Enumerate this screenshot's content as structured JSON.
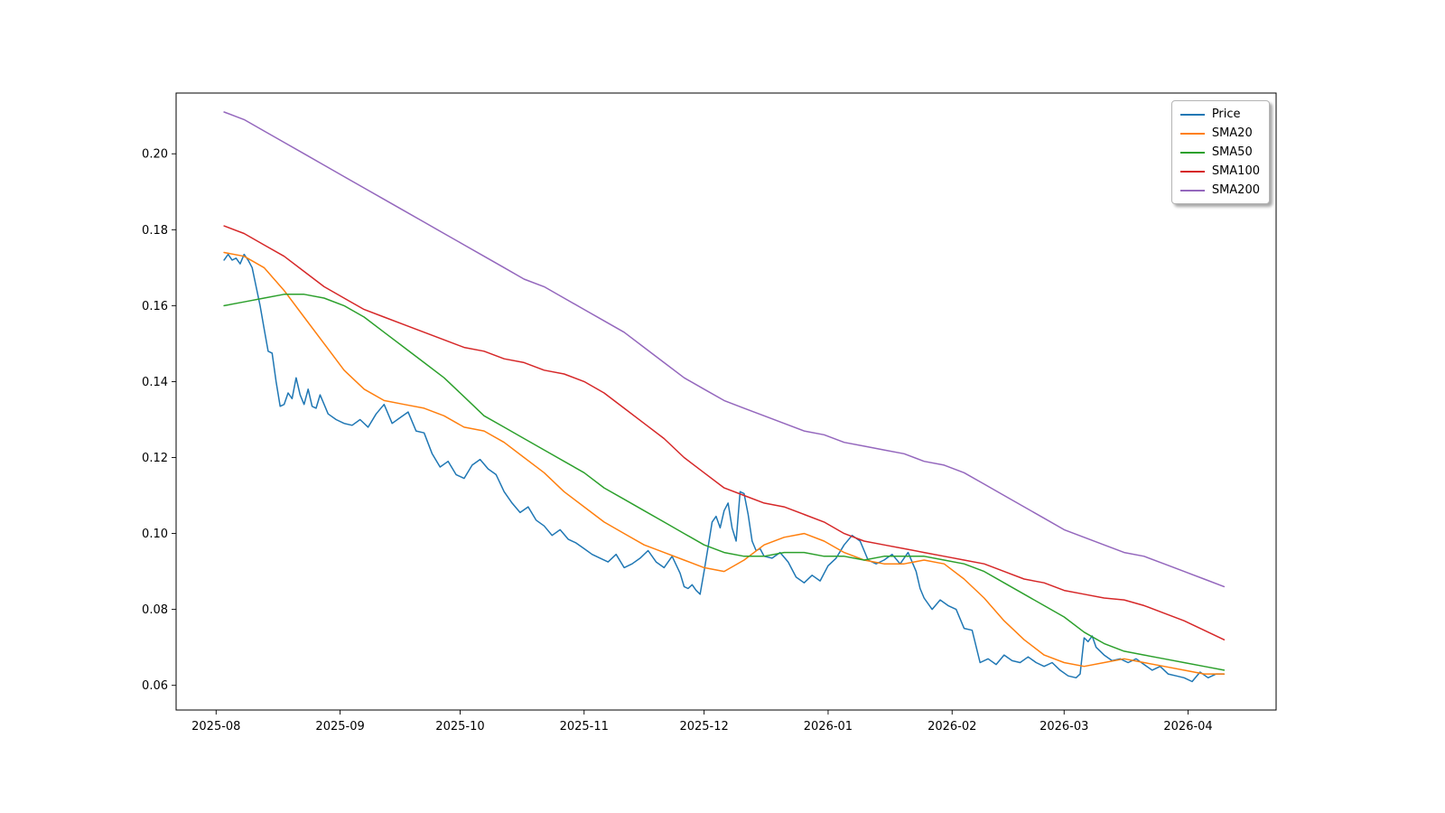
{
  "chart_data": {
    "type": "line",
    "title": "",
    "xlabel": "",
    "ylabel": "",
    "grid": false,
    "legend_position": "upper right",
    "xlim": [
      "2025-07-22",
      "2026-04-23"
    ],
    "ylim": [
      0.0535,
      0.216
    ],
    "yticks": [
      0.06,
      0.08,
      0.1,
      0.12,
      0.14,
      0.16,
      0.18,
      0.2
    ],
    "xticks": [
      {
        "date": "2025-08-01",
        "label": "2025-08"
      },
      {
        "date": "2025-09-01",
        "label": "2025-09"
      },
      {
        "date": "2025-10-01",
        "label": "2025-10"
      },
      {
        "date": "2025-11-01",
        "label": "2025-11"
      },
      {
        "date": "2025-12-01",
        "label": "2025-12"
      },
      {
        "date": "2026-01-01",
        "label": "2026-01"
      },
      {
        "date": "2026-02-01",
        "label": "2026-02"
      },
      {
        "date": "2026-03-01",
        "label": "2026-03"
      },
      {
        "date": "2026-04-01",
        "label": "2026-04"
      }
    ],
    "series": [
      {
        "name": "Price",
        "color": "#1f77b4",
        "dates": [
          "2025-08-03",
          "2025-08-04",
          "2025-08-05",
          "2025-08-06",
          "2025-08-07",
          "2025-08-08",
          "2025-08-09",
          "2025-08-10",
          "2025-08-11",
          "2025-08-12",
          "2025-08-13",
          "2025-08-14",
          "2025-08-15",
          "2025-08-16",
          "2025-08-17",
          "2025-08-18",
          "2025-08-19",
          "2025-08-20",
          "2025-08-21",
          "2025-08-22",
          "2025-08-23",
          "2025-08-24",
          "2025-08-25",
          "2025-08-26",
          "2025-08-27",
          "2025-08-28",
          "2025-08-29",
          "2025-08-31",
          "2025-09-02",
          "2025-09-04",
          "2025-09-06",
          "2025-09-08",
          "2025-09-10",
          "2025-09-12",
          "2025-09-14",
          "2025-09-16",
          "2025-09-18",
          "2025-09-20",
          "2025-09-22",
          "2025-09-24",
          "2025-09-26",
          "2025-09-28",
          "2025-09-30",
          "2025-10-02",
          "2025-10-04",
          "2025-10-06",
          "2025-10-08",
          "2025-10-10",
          "2025-10-12",
          "2025-10-14",
          "2025-10-16",
          "2025-10-18",
          "2025-10-20",
          "2025-10-22",
          "2025-10-24",
          "2025-10-26",
          "2025-10-28",
          "2025-10-30",
          "2025-11-01",
          "2025-11-03",
          "2025-11-05",
          "2025-11-07",
          "2025-11-09",
          "2025-11-11",
          "2025-11-13",
          "2025-11-15",
          "2025-11-17",
          "2025-11-19",
          "2025-11-21",
          "2025-11-23",
          "2025-11-25",
          "2025-11-26",
          "2025-11-27",
          "2025-11-28",
          "2025-11-29",
          "2025-11-30",
          "2025-12-01",
          "2025-12-02",
          "2025-12-03",
          "2025-12-04",
          "2025-12-05",
          "2025-12-06",
          "2025-12-07",
          "2025-12-08",
          "2025-12-09",
          "2025-12-10",
          "2025-12-11",
          "2025-12-12",
          "2025-12-13",
          "2025-12-14",
          "2025-12-15",
          "2025-12-16",
          "2025-12-18",
          "2025-12-20",
          "2025-12-22",
          "2025-12-24",
          "2025-12-26",
          "2025-12-28",
          "2025-12-30",
          "2026-01-01",
          "2026-01-03",
          "2026-01-05",
          "2026-01-07",
          "2026-01-09",
          "2026-01-11",
          "2026-01-13",
          "2026-01-15",
          "2026-01-17",
          "2026-01-19",
          "2026-01-21",
          "2026-01-23",
          "2026-01-24",
          "2026-01-25",
          "2026-01-27",
          "2026-01-29",
          "2026-01-31",
          "2026-02-02",
          "2026-02-04",
          "2026-02-06",
          "2026-02-08",
          "2026-02-10",
          "2026-02-12",
          "2026-02-14",
          "2026-02-16",
          "2026-02-18",
          "2026-02-20",
          "2026-02-22",
          "2026-02-24",
          "2026-02-26",
          "2026-02-28",
          "2026-03-02",
          "2026-03-04",
          "2026-03-05",
          "2026-03-06",
          "2026-03-07",
          "2026-03-08",
          "2026-03-09",
          "2026-03-11",
          "2026-03-13",
          "2026-03-15",
          "2026-03-17",
          "2026-03-19",
          "2026-03-21",
          "2026-03-23",
          "2026-03-25",
          "2026-03-27",
          "2026-03-29",
          "2026-03-31",
          "2026-04-02",
          "2026-04-04",
          "2026-04-06",
          "2026-04-08",
          "2026-04-10"
        ],
        "values": [
          0.172,
          0.1735,
          0.172,
          0.1725,
          0.171,
          0.1735,
          0.172,
          0.17,
          0.165,
          0.16,
          0.154,
          0.148,
          0.1475,
          0.14,
          0.1335,
          0.134,
          0.137,
          0.1355,
          0.141,
          0.1365,
          0.134,
          0.138,
          0.1335,
          0.133,
          0.1365,
          0.134,
          0.1315,
          0.13,
          0.129,
          0.1285,
          0.13,
          0.128,
          0.1315,
          0.134,
          0.129,
          0.1305,
          0.132,
          0.127,
          0.1265,
          0.121,
          0.1175,
          0.119,
          0.1155,
          0.1145,
          0.118,
          0.1195,
          0.117,
          0.1155,
          0.111,
          0.108,
          0.1055,
          0.107,
          0.1035,
          0.102,
          0.0995,
          0.101,
          0.0985,
          0.0975,
          0.096,
          0.0945,
          0.0935,
          0.0925,
          0.0945,
          0.091,
          0.092,
          0.0935,
          0.0955,
          0.0925,
          0.091,
          0.094,
          0.0895,
          0.086,
          0.0855,
          0.0865,
          0.085,
          0.084,
          0.09,
          0.0965,
          0.103,
          0.1045,
          0.1015,
          0.106,
          0.108,
          0.1015,
          0.098,
          0.111,
          0.1105,
          0.105,
          0.098,
          0.0955,
          0.096,
          0.094,
          0.0935,
          0.095,
          0.0925,
          0.0885,
          0.087,
          0.089,
          0.0875,
          0.0915,
          0.0935,
          0.097,
          0.0995,
          0.098,
          0.093,
          0.092,
          0.093,
          0.0945,
          0.092,
          0.095,
          0.09,
          0.0855,
          0.083,
          0.08,
          0.0825,
          0.081,
          0.08,
          0.075,
          0.0745,
          0.066,
          0.067,
          0.0655,
          0.068,
          0.0665,
          0.066,
          0.0675,
          0.066,
          0.065,
          0.066,
          0.064,
          0.0625,
          0.062,
          0.063,
          0.0725,
          0.0715,
          0.073,
          0.07,
          0.068,
          0.0665,
          0.067,
          0.066,
          0.067,
          0.0655,
          0.064,
          0.065,
          0.063,
          0.0625,
          0.062,
          0.061,
          0.0635,
          0.062,
          0.063,
          0.063
        ]
      },
      {
        "name": "SMA20",
        "color": "#ff7f0e",
        "dates": [
          "2025-08-03",
          "2025-08-08",
          "2025-08-13",
          "2025-08-18",
          "2025-08-23",
          "2025-08-28",
          "2025-09-02",
          "2025-09-07",
          "2025-09-12",
          "2025-09-17",
          "2025-09-22",
          "2025-09-27",
          "2025-10-02",
          "2025-10-07",
          "2025-10-12",
          "2025-10-17",
          "2025-10-22",
          "2025-10-27",
          "2025-11-01",
          "2025-11-06",
          "2025-11-11",
          "2025-11-16",
          "2025-11-21",
          "2025-11-26",
          "2025-12-01",
          "2025-12-06",
          "2025-12-11",
          "2025-12-16",
          "2025-12-21",
          "2025-12-26",
          "2025-12-31",
          "2026-01-05",
          "2026-01-10",
          "2026-01-15",
          "2026-01-20",
          "2026-01-25",
          "2026-01-30",
          "2026-02-04",
          "2026-02-09",
          "2026-02-14",
          "2026-02-19",
          "2026-02-24",
          "2026-03-01",
          "2026-03-06",
          "2026-03-11",
          "2026-03-16",
          "2026-03-21",
          "2026-03-26",
          "2026-03-31",
          "2026-04-05",
          "2026-04-10"
        ],
        "values": [
          0.174,
          0.173,
          0.17,
          0.164,
          0.157,
          0.15,
          0.143,
          0.138,
          0.135,
          0.134,
          0.133,
          0.131,
          0.128,
          0.127,
          0.124,
          0.12,
          0.116,
          0.111,
          0.107,
          0.103,
          0.1,
          0.097,
          0.095,
          0.093,
          0.091,
          0.09,
          0.093,
          0.097,
          0.099,
          0.1,
          0.098,
          0.095,
          0.093,
          0.092,
          0.092,
          0.093,
          0.092,
          0.088,
          0.083,
          0.077,
          0.072,
          0.068,
          0.066,
          0.065,
          0.066,
          0.067,
          0.066,
          0.065,
          0.064,
          0.063,
          0.063
        ]
      },
      {
        "name": "SMA50",
        "color": "#2ca02c",
        "dates": [
          "2025-08-03",
          "2025-08-08",
          "2025-08-13",
          "2025-08-18",
          "2025-08-23",
          "2025-08-28",
          "2025-09-02",
          "2025-09-07",
          "2025-09-12",
          "2025-09-17",
          "2025-09-22",
          "2025-09-27",
          "2025-10-02",
          "2025-10-07",
          "2025-10-12",
          "2025-10-17",
          "2025-10-22",
          "2025-10-27",
          "2025-11-01",
          "2025-11-06",
          "2025-11-11",
          "2025-11-16",
          "2025-11-21",
          "2025-11-26",
          "2025-12-01",
          "2025-12-06",
          "2025-12-11",
          "2025-12-16",
          "2025-12-21",
          "2025-12-26",
          "2025-12-31",
          "2026-01-05",
          "2026-01-10",
          "2026-01-15",
          "2026-01-20",
          "2026-01-25",
          "2026-01-30",
          "2026-02-04",
          "2026-02-09",
          "2026-02-14",
          "2026-02-19",
          "2026-02-24",
          "2026-03-01",
          "2026-03-06",
          "2026-03-11",
          "2026-03-16",
          "2026-03-21",
          "2026-03-26",
          "2026-03-31",
          "2026-04-05",
          "2026-04-10"
        ],
        "values": [
          0.16,
          0.161,
          0.162,
          0.163,
          0.163,
          0.162,
          0.16,
          0.157,
          0.153,
          0.149,
          0.145,
          0.141,
          0.136,
          0.131,
          0.128,
          0.125,
          0.122,
          0.119,
          0.116,
          0.112,
          0.109,
          0.106,
          0.103,
          0.1,
          0.097,
          0.095,
          0.094,
          0.094,
          0.095,
          0.095,
          0.094,
          0.094,
          0.093,
          0.094,
          0.094,
          0.094,
          0.093,
          0.092,
          0.09,
          0.087,
          0.084,
          0.081,
          0.078,
          0.074,
          0.071,
          0.069,
          0.068,
          0.067,
          0.066,
          0.065,
          0.064
        ]
      },
      {
        "name": "SMA100",
        "color": "#d62728",
        "dates": [
          "2025-08-03",
          "2025-08-08",
          "2025-08-13",
          "2025-08-18",
          "2025-08-23",
          "2025-08-28",
          "2025-09-02",
          "2025-09-07",
          "2025-09-12",
          "2025-09-17",
          "2025-09-22",
          "2025-09-27",
          "2025-10-02",
          "2025-10-07",
          "2025-10-12",
          "2025-10-17",
          "2025-10-22",
          "2025-10-27",
          "2025-11-01",
          "2025-11-06",
          "2025-11-11",
          "2025-11-16",
          "2025-11-21",
          "2025-11-26",
          "2025-12-01",
          "2025-12-06",
          "2025-12-11",
          "2025-12-16",
          "2025-12-21",
          "2025-12-26",
          "2025-12-31",
          "2026-01-05",
          "2026-01-10",
          "2026-01-15",
          "2026-01-20",
          "2026-01-25",
          "2026-01-30",
          "2026-02-04",
          "2026-02-09",
          "2026-02-14",
          "2026-02-19",
          "2026-02-24",
          "2026-03-01",
          "2026-03-06",
          "2026-03-11",
          "2026-03-16",
          "2026-03-21",
          "2026-03-26",
          "2026-03-31",
          "2026-04-05",
          "2026-04-10"
        ],
        "values": [
          0.181,
          0.179,
          0.176,
          0.173,
          0.169,
          0.165,
          0.162,
          0.159,
          0.157,
          0.155,
          0.153,
          0.151,
          0.149,
          0.148,
          0.146,
          0.145,
          0.143,
          0.142,
          0.14,
          0.137,
          0.133,
          0.129,
          0.125,
          0.12,
          0.116,
          0.112,
          0.11,
          0.108,
          0.107,
          0.105,
          0.103,
          0.1,
          0.098,
          0.097,
          0.096,
          0.095,
          0.094,
          0.093,
          0.092,
          0.09,
          0.088,
          0.087,
          0.085,
          0.084,
          0.083,
          0.0825,
          0.081,
          0.079,
          0.077,
          0.0745,
          0.072
        ]
      },
      {
        "name": "SMA200",
        "color": "#9467bd",
        "dates": [
          "2025-08-03",
          "2025-08-08",
          "2025-08-13",
          "2025-08-18",
          "2025-08-23",
          "2025-08-28",
          "2025-09-02",
          "2025-09-07",
          "2025-09-12",
          "2025-09-17",
          "2025-09-22",
          "2025-09-27",
          "2025-10-02",
          "2025-10-07",
          "2025-10-12",
          "2025-10-17",
          "2025-10-22",
          "2025-10-27",
          "2025-11-01",
          "2025-11-06",
          "2025-11-11",
          "2025-11-16",
          "2025-11-21",
          "2025-11-26",
          "2025-12-01",
          "2025-12-06",
          "2025-12-11",
          "2025-12-16",
          "2025-12-21",
          "2025-12-26",
          "2025-12-31",
          "2026-01-05",
          "2026-01-10",
          "2026-01-15",
          "2026-01-20",
          "2026-01-25",
          "2026-01-30",
          "2026-02-04",
          "2026-02-09",
          "2026-02-14",
          "2026-02-19",
          "2026-02-24",
          "2026-03-01",
          "2026-03-06",
          "2026-03-11",
          "2026-03-16",
          "2026-03-21",
          "2026-03-26",
          "2026-03-31",
          "2026-04-05",
          "2026-04-10"
        ],
        "values": [
          0.211,
          0.209,
          0.206,
          0.203,
          0.2,
          0.197,
          0.194,
          0.191,
          0.188,
          0.185,
          0.182,
          0.179,
          0.176,
          0.173,
          0.17,
          0.167,
          0.165,
          0.162,
          0.159,
          0.156,
          0.153,
          0.149,
          0.145,
          0.141,
          0.138,
          0.135,
          0.133,
          0.131,
          0.129,
          0.127,
          0.126,
          0.124,
          0.123,
          0.122,
          0.121,
          0.119,
          0.118,
          0.116,
          0.113,
          0.11,
          0.107,
          0.104,
          0.101,
          0.099,
          0.097,
          0.095,
          0.094,
          0.092,
          0.09,
          0.088,
          0.086
        ]
      }
    ]
  }
}
